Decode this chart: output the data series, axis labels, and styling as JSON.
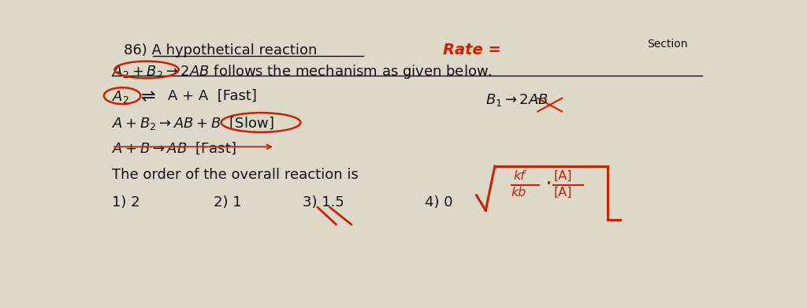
{
  "bg_color": "#ddd8c8",
  "red_color": "#cc2200",
  "black_color": "#111111",
  "options": [
    "1) 2",
    "2) 1",
    "3) 1.5",
    "4) 0"
  ]
}
